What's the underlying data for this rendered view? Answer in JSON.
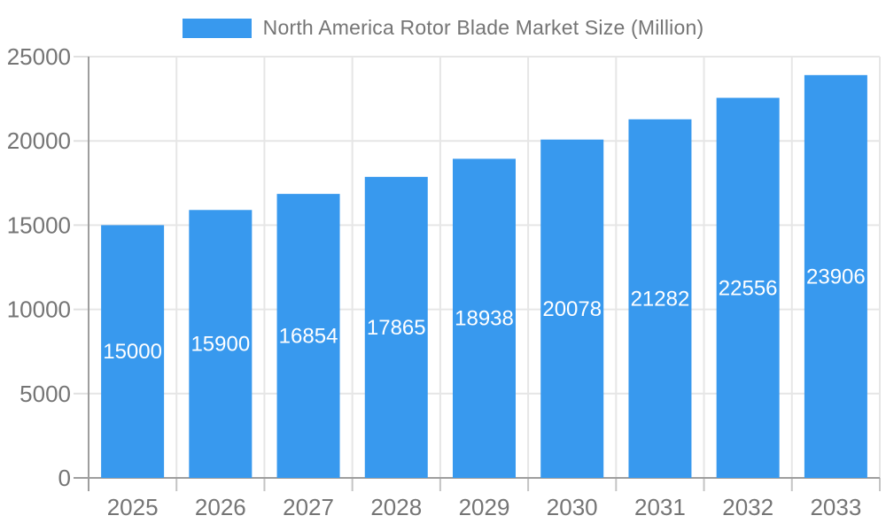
{
  "chart_data": {
    "type": "bar",
    "categories": [
      "2025",
      "2026",
      "2027",
      "2028",
      "2029",
      "2030",
      "2031",
      "2032",
      "2033"
    ],
    "series": [
      {
        "name": "North America Rotor Blade Market Size (Million)",
        "values": [
          15000,
          15900,
          16854,
          17865,
          18938,
          20078,
          21282,
          22556,
          23906
        ]
      }
    ],
    "value_labels": [
      15000,
      15900,
      16854,
      17865,
      18938,
      20078,
      21282,
      22556,
      23906
    ],
    "xlabel": "",
    "ylabel": "",
    "ylim": [
      0,
      25000
    ],
    "yticks": [
      0,
      5000,
      10000,
      15000,
      20000,
      25000
    ],
    "grid": true,
    "legend_position": "top",
    "value_label_position": "inside-center",
    "colors": {
      "bar": "#3899EE",
      "grid": "#E6E6E6",
      "axis_line": "#9E9E9E",
      "left_tick": "#E0E0E0",
      "bottom_tick": "#C4C4C4",
      "axis_text": "#757575",
      "value_label": "#FFFFFF",
      "background": "#FFFFFF"
    }
  }
}
